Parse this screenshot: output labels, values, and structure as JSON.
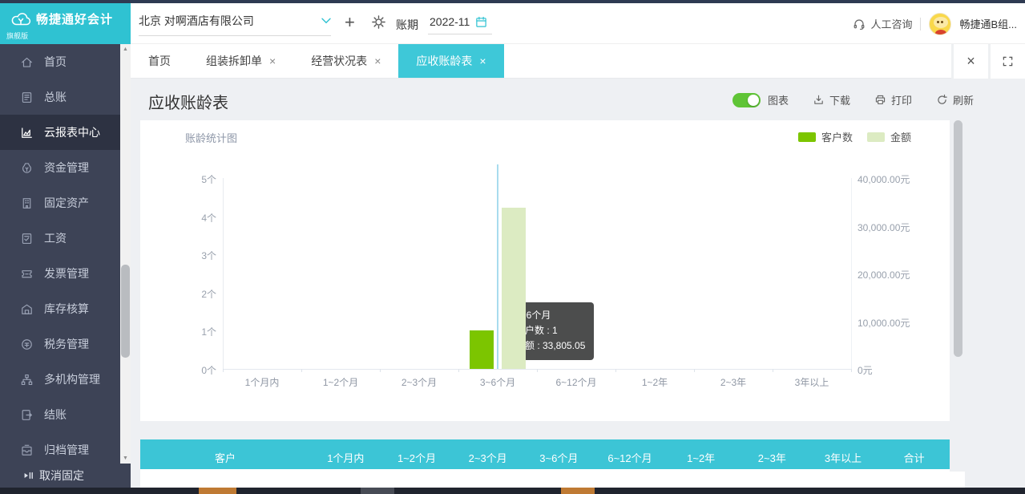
{
  "brand": {
    "name": "畅捷通好会计",
    "edition": "旗舰版"
  },
  "topbar": {
    "company": "北京 对啊酒店有限公司",
    "period_label": "账期",
    "period_value": "2022-11",
    "support": "人工咨询",
    "user": "畅捷通B组..."
  },
  "icons": {
    "plus": "+",
    "close_tab": "×",
    "close_all": "×",
    "scroll_up": "▲",
    "scroll_down": "▼"
  },
  "sidebar": {
    "items": [
      {
        "label": "首页"
      },
      {
        "label": "总账"
      },
      {
        "label": "云报表中心"
      },
      {
        "label": "资金管理"
      },
      {
        "label": "固定资产"
      },
      {
        "label": "工资"
      },
      {
        "label": "发票管理"
      },
      {
        "label": "库存核算"
      },
      {
        "label": "税务管理"
      },
      {
        "label": "多机构管理"
      },
      {
        "label": "结账"
      },
      {
        "label": "归档管理"
      }
    ],
    "active_item": "云报表中心",
    "unpin_label": "取消固定"
  },
  "tabs": [
    {
      "label": "首页",
      "closable": false
    },
    {
      "label": "组装拆卸单",
      "closable": true
    },
    {
      "label": "经营状况表",
      "closable": true
    },
    {
      "label": "应收账龄表",
      "closable": true
    }
  ],
  "active_tab": "应收账龄表",
  "page": {
    "title": "应收账龄表",
    "toggle_label": "图表",
    "download_label": "下载",
    "print_label": "打印",
    "refresh_label": "刷新"
  },
  "chart_data": {
    "type": "bar",
    "title": "账龄统计图",
    "categories": [
      "1个月内",
      "1~2个月",
      "2~3个月",
      "3~6个月",
      "6~12个月",
      "1~2年",
      "2~3年",
      "3年以上"
    ],
    "series": [
      {
        "name": "客户数",
        "axis": "left",
        "unit": "个",
        "color": "#7cc500",
        "values": [
          0,
          0,
          0,
          1,
          0,
          0,
          0,
          0
        ]
      },
      {
        "name": "金额",
        "axis": "right",
        "unit": "元",
        "color": "#dcebc2",
        "values": [
          0,
          0,
          0,
          33805.05,
          0,
          0,
          0,
          0
        ]
      }
    ],
    "left_axis": {
      "min": 0,
      "max": 5,
      "ticks": [
        "5个",
        "4个",
        "3个",
        "2个",
        "1个",
        "0个"
      ]
    },
    "right_axis": {
      "min": 0,
      "max": 40000,
      "ticks": [
        "40,000.00元",
        "30,000.00元",
        "20,000.00元",
        "10,000.00元",
        "0元"
      ]
    },
    "legend_position": "top-right",
    "grid": false,
    "highlighted_category": "3~6个月"
  },
  "tooltip": {
    "title": "3~6个月",
    "lines": [
      "客户数 : 1",
      "金额 : 33,805.05"
    ]
  },
  "table": {
    "headers": [
      "客户",
      "1个月内",
      "1~2个月",
      "2~3个月",
      "3~6个月",
      "6~12个月",
      "1~2年",
      "2~3年",
      "3年以上",
      "合计"
    ]
  },
  "colors": {
    "brand_teal": "#2fc2d2",
    "tab_active": "#3ec8d8",
    "table_header": "#3cc5d6",
    "toggle_on": "#5fc436",
    "bar_customer_count": "#7cc500",
    "bar_amount": "#dcebc2",
    "sidebar_bg": "#3d4356",
    "sidebar_active_bg": "#2d3242",
    "tooltip_bg": "#383a3a",
    "pointer_line": "#a8dcee"
  }
}
